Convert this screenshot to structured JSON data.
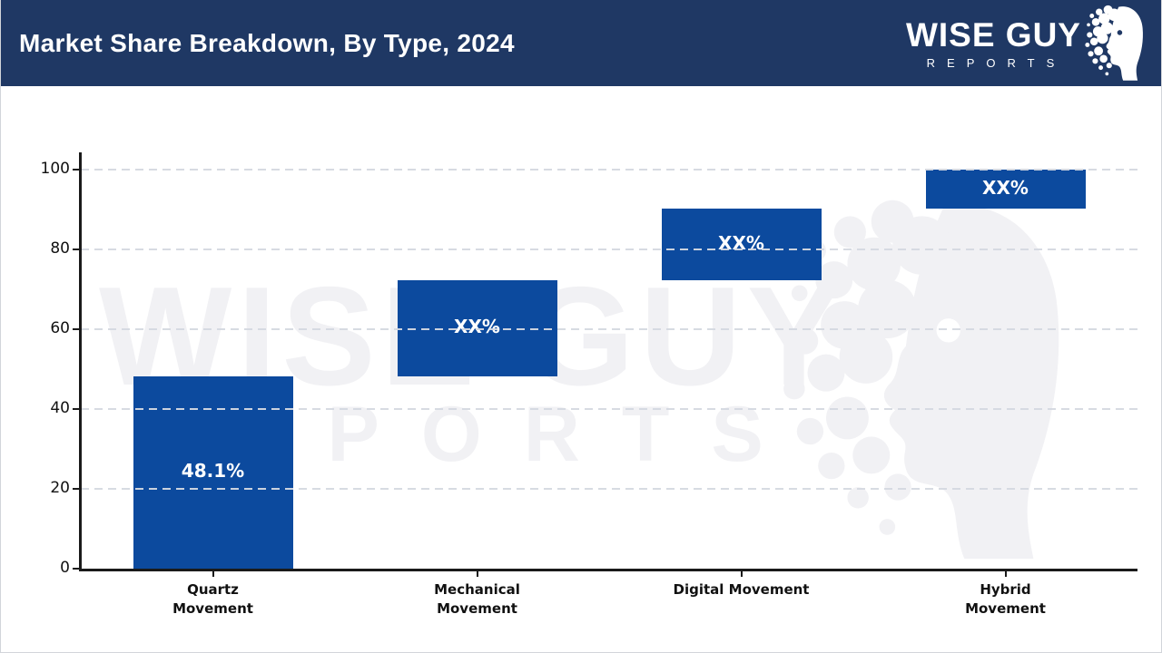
{
  "header": {
    "title": "Market Share Breakdown, By Type, 2024",
    "logo": {
      "line1": "WISE GUY",
      "line2": "REPORTS"
    }
  },
  "watermark": {
    "line1": "WISE GUY",
    "line2": "REPORTS"
  },
  "colors": {
    "header_bg": "#1f3864",
    "bar": "#0c4a9e",
    "bar_label": "#ffffff",
    "grid": "#d5d9e1",
    "axis": "#1a1a1a",
    "watermark": "#f1f1f4"
  },
  "chart_data": {
    "type": "bar",
    "subtype": "waterfall",
    "title": "Market Share Breakdown, By Type, 2024",
    "categories": [
      "Quartz Movement",
      "Mechanical Movement",
      "Digital Movement",
      "Hybrid Movement"
    ],
    "segments": [
      {
        "category": "Quartz Movement",
        "start": 0,
        "end": 48.1,
        "label": "48.1%"
      },
      {
        "category": "Mechanical Movement",
        "start": 48.1,
        "end": 72.2,
        "label": "XX%"
      },
      {
        "category": "Digital Movement",
        "start": 72.2,
        "end": 90.2,
        "label": "XX%"
      },
      {
        "category": "Hybrid Movement",
        "start": 90.2,
        "end": 100,
        "label": "XX%"
      }
    ],
    "ylim": [
      0,
      100
    ],
    "yticks": [
      0,
      20,
      40,
      60,
      80,
      100
    ],
    "grid": "horizontal-dashed",
    "legend": "none"
  }
}
